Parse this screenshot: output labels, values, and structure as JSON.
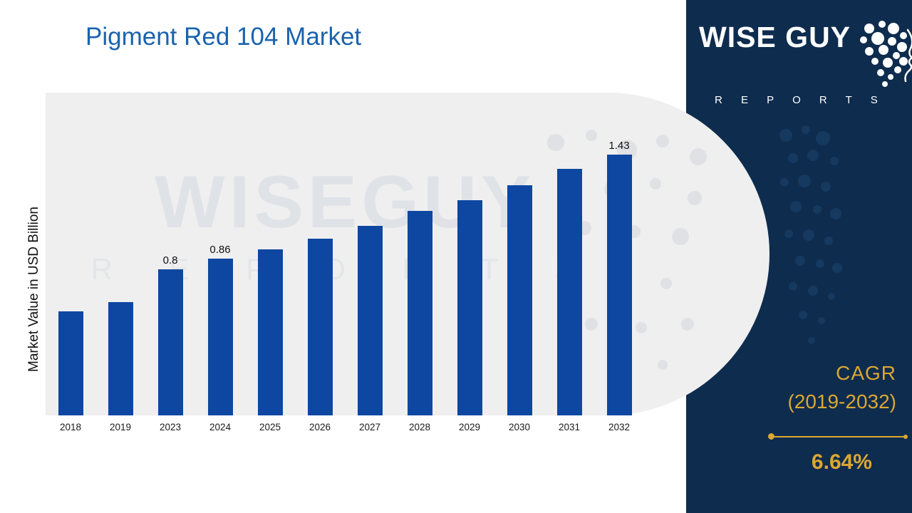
{
  "title": "Pigment Red 104 Market",
  "ylabel": "Market Value in USD Billion",
  "logo": {
    "line1": "WISE GUY",
    "line2": "R E P O R T S"
  },
  "watermark": {
    "line1": "WISEGUY",
    "line2": "R E P O R T S"
  },
  "cagr": {
    "label": "CAGR",
    "range": "(2019-2032)",
    "value": "6.64%"
  },
  "colors": {
    "bar": "#0d47a1",
    "panel": "#0e2c4e",
    "accent": "#dba733",
    "title_blue": "#1a63ae",
    "plot_bg": "#efeff0"
  },
  "chart_data": {
    "type": "bar",
    "title": "Pigment Red 104 Market",
    "xlabel": "",
    "ylabel": "Market Value in USD Billion",
    "unit": "USD Billion",
    "ylim": [
      0,
      1.6
    ],
    "grid": false,
    "legend": "none",
    "categories": [
      "2018",
      "2019",
      "2023",
      "2024",
      "2025",
      "2026",
      "2027",
      "2028",
      "2029",
      "2030",
      "2031",
      "2032"
    ],
    "values": [
      0.57,
      0.62,
      0.8,
      0.86,
      0.91,
      0.97,
      1.04,
      1.12,
      1.18,
      1.26,
      1.35,
      1.43
    ],
    "value_labels": {
      "2023": "0.8",
      "2024": "0.86",
      "2032": "1.43"
    },
    "cagr_note": "CAGR (2019-2032) 6.64%"
  }
}
